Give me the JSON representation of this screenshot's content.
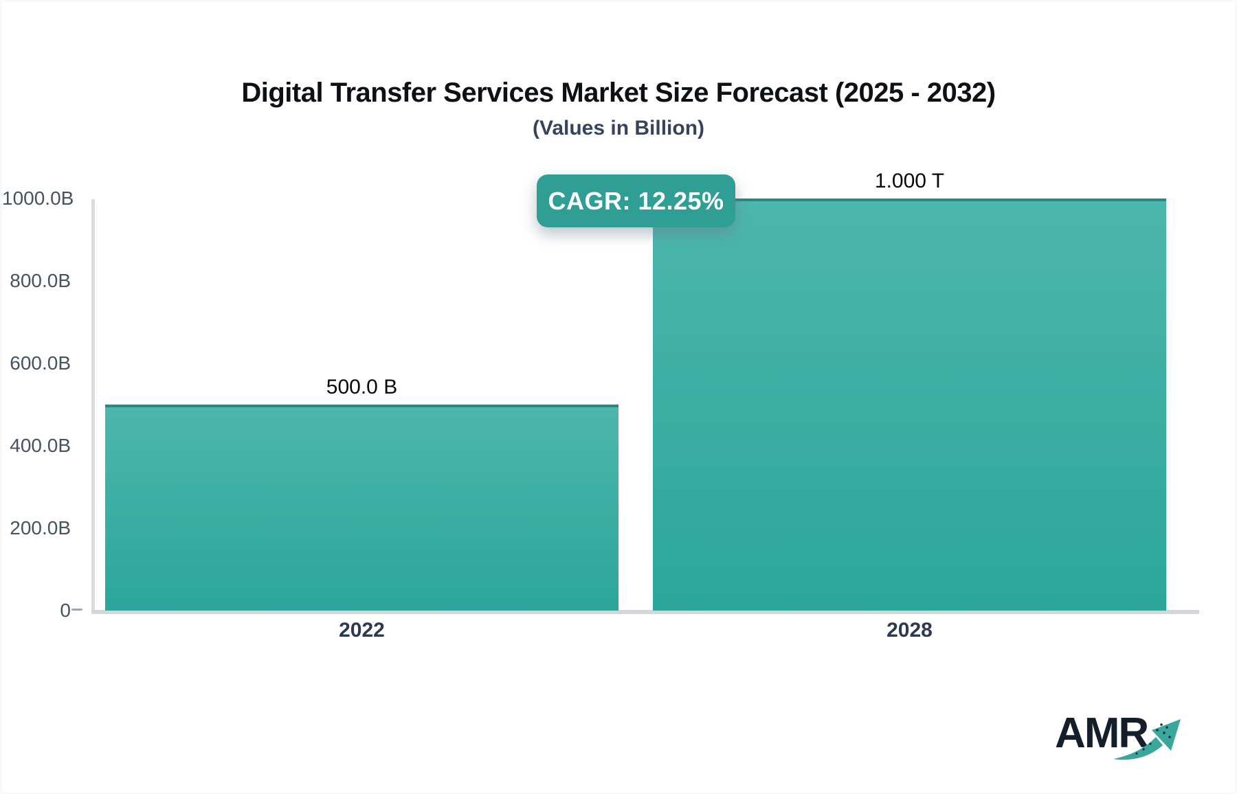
{
  "header": {
    "title": "Digital Transfer Services Market Size Forecast (2025 - 2032)",
    "subtitle": "(Values in Billion)"
  },
  "badge": {
    "label": "CAGR: 12.25%",
    "background": "#2f9e94",
    "text_color": "#ffffff"
  },
  "chart_data": {
    "type": "bar",
    "title": "Digital Transfer Services Market Size Forecast (2025 - 2032)",
    "subtitle": "(Values in Billion)",
    "unit": "Billion",
    "categories": [
      "2022",
      "2028"
    ],
    "values": [
      500.0,
      1000.0
    ],
    "value_labels": [
      "500.0 B",
      "1.000 T"
    ],
    "cagr_label": "CAGR: 12.25%",
    "ylim": [
      0,
      1000
    ],
    "y_ticks": [
      {
        "value": 0,
        "label": "0"
      },
      {
        "value": 200,
        "label": "200.0B"
      },
      {
        "value": 400,
        "label": "400.0B"
      },
      {
        "value": 600,
        "label": "600.0B"
      },
      {
        "value": 800,
        "label": "800.0B"
      },
      {
        "value": 1000,
        "label": "1000.0B"
      }
    ],
    "grid": false,
    "legend_position": "none",
    "bar_gradient_top": "#4db6ad",
    "bar_gradient_bottom": "#2ba69b",
    "bar_border_color": "#228a80",
    "axis_color": "#d5d8dc"
  },
  "logo": {
    "text": "AMR",
    "text_color": "#141f2b",
    "arrow_color": "#3aa79d"
  }
}
